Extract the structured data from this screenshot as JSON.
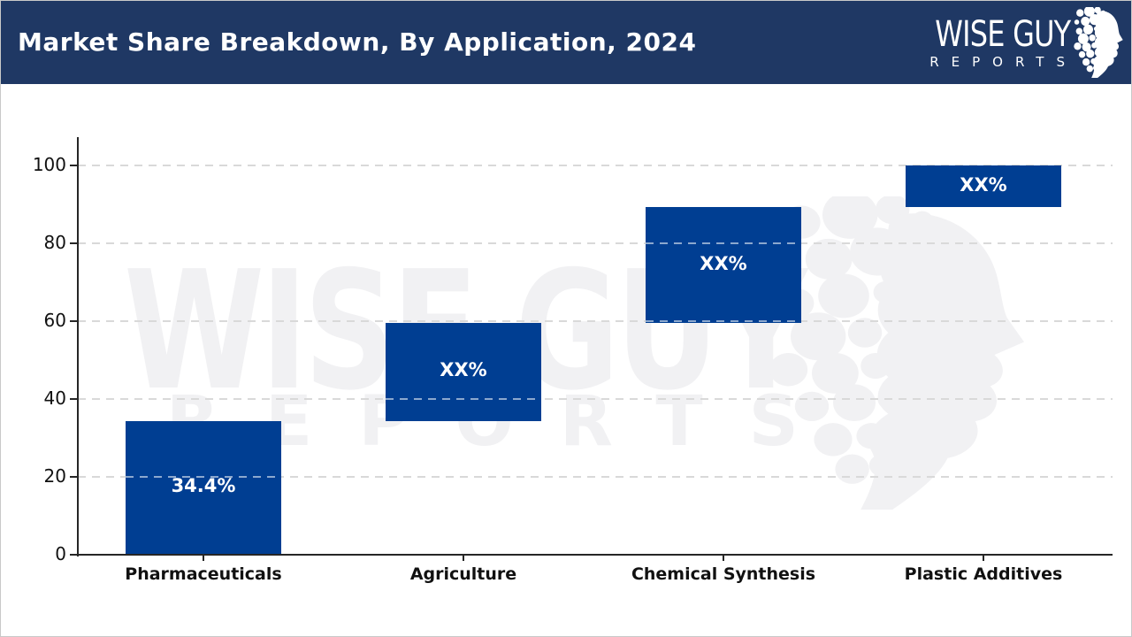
{
  "header": {
    "title": "Market Share Breakdown, By Application, 2024",
    "bg_color": "#1f3864",
    "logo": {
      "primary": "WISE GUY",
      "secondary": "REPORTS"
    }
  },
  "watermark": {
    "primary": "WISE GUY",
    "secondary": "REPORTS"
  },
  "chart_data": {
    "type": "bar",
    "variant": "waterfall",
    "title": "Market Share Breakdown, By Application, 2024",
    "categories": [
      "Pharmaceuticals",
      "Agriculture",
      "Chemical Synthesis",
      "Plastic Additives"
    ],
    "segments": [
      {
        "category": "Pharmaceuticals",
        "start": 0,
        "end": 34.4,
        "label": "34.4%"
      },
      {
        "category": "Agriculture",
        "start": 34.4,
        "end": 59.5,
        "label": "XX%"
      },
      {
        "category": "Chemical Synthesis",
        "start": 59.5,
        "end": 89.3,
        "label": "XX%"
      },
      {
        "category": "Plastic Additives",
        "start": 89.3,
        "end": 100,
        "label": "XX%"
      }
    ],
    "xlabel": "",
    "ylabel": "",
    "yticks": [
      0,
      20,
      40,
      60,
      80,
      100
    ],
    "ylim": [
      0,
      105
    ],
    "bar_color": "#003e92",
    "bar_label_color": "#ffffff",
    "grid": {
      "axis": "y",
      "style": "dashed",
      "color": "#d9d9d9",
      "over_bars_color": "rgba(255,255,255,0.55)"
    },
    "legend_position": "none"
  }
}
